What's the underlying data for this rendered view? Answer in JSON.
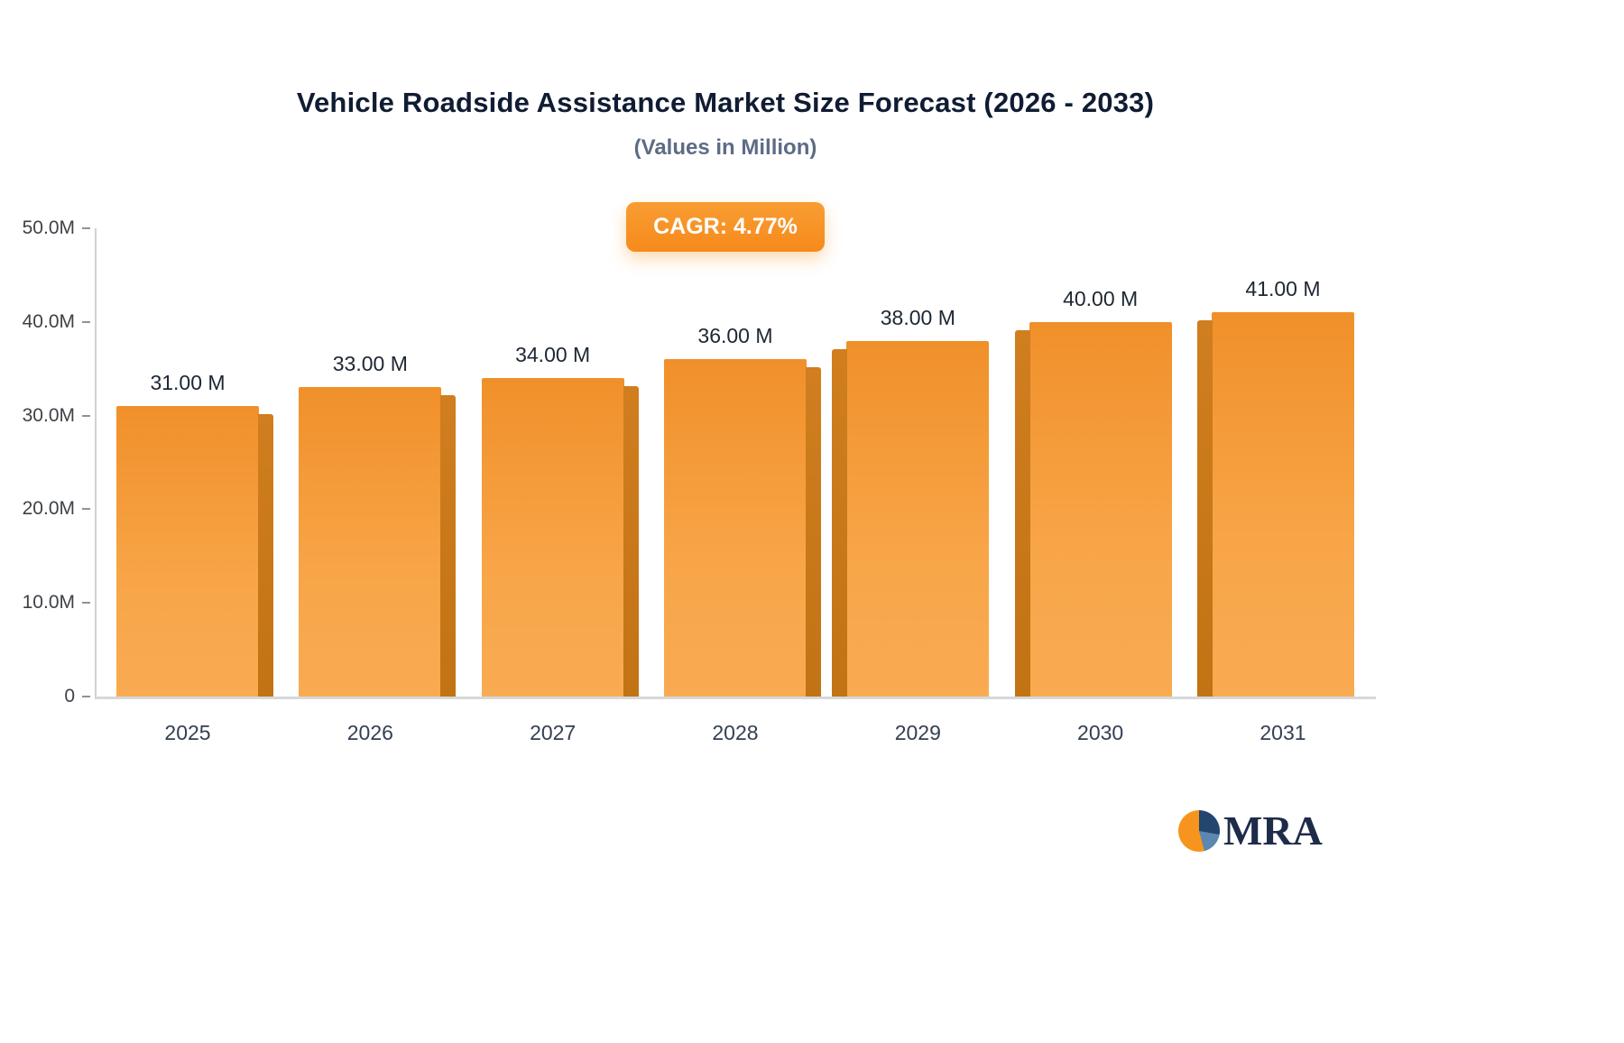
{
  "header": {
    "title": "Vehicle Roadside Assistance Market Size Forecast (2026 - 2033)",
    "subtitle": "(Values in Million)"
  },
  "cagr_badge": {
    "label": "CAGR: 4.77%"
  },
  "chart_data": {
    "type": "bar",
    "title": "Vehicle Roadside Assistance Market Size Forecast (2026 - 2033)",
    "subtitle": "(Values in Million)",
    "cagr_label": "CAGR: 4.77%",
    "categories": [
      "2025",
      "2026",
      "2027",
      "2028",
      "2029",
      "2030",
      "2031"
    ],
    "values": [
      31,
      33,
      34,
      36,
      38,
      40,
      41
    ],
    "value_labels": [
      "31.00 M",
      "33.00 M",
      "34.00 M",
      "36.00 M",
      "38.00 M",
      "40.00 M",
      "41.00 M"
    ],
    "unit": "Million",
    "ylim": [
      0,
      50
    ],
    "yticks": [
      0,
      10,
      20,
      30,
      40,
      50
    ],
    "ytick_labels": [
      "0",
      "10.0M",
      "20.0M",
      "30.0M",
      "40.0M",
      "50.0M"
    ],
    "grid": false,
    "legend": "none",
    "colors": {
      "bar_top": "#f0902a",
      "bar_bottom": "#f9ab52",
      "bar_side": "#c87818",
      "badge": "#f7941e",
      "title_text": "#101c33",
      "subtitle_text": "#5d6b85"
    }
  },
  "logo": {
    "text": "MRA"
  }
}
